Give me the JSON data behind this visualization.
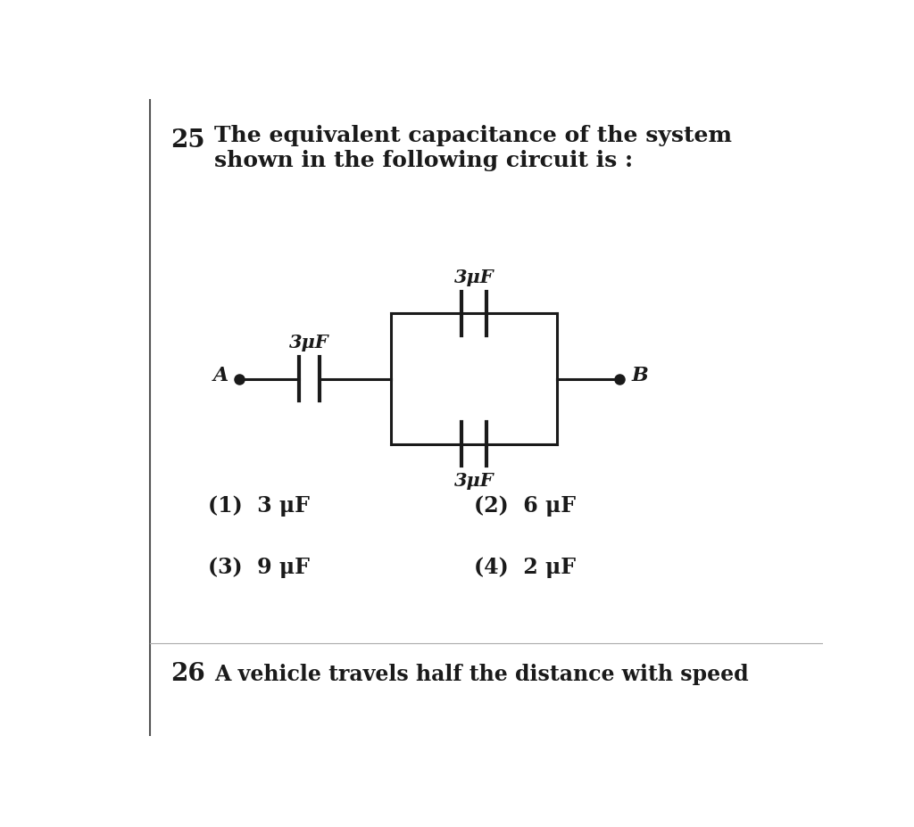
{
  "background_color": "#ffffff",
  "text_color": "#1a1a1a",
  "question_number": "25",
  "question_text": "The equivalent capacitance of the system\nshown in the following circuit is :",
  "options": [
    {
      "num": "(1)",
      "val": "3 μF"
    },
    {
      "num": "(2)",
      "val": "6 μF"
    },
    {
      "num": "(3)",
      "val": "9 μF"
    },
    {
      "num": "(4)",
      "val": "2 μF"
    }
  ],
  "footer_number": "26",
  "footer_text": "A vehicle travels half the distance with speed",
  "cap_label_series": "3μF",
  "cap_label_parallel_top": "3μF",
  "cap_label_parallel_bottom": "3μF",
  "node_A": "A",
  "node_B": "B",
  "left_border_color": "#555555",
  "circuit_color": "#1a1a1a",
  "font_size_question": 18,
  "font_size_options": 17,
  "font_size_qnum": 20,
  "font_size_footer": 17,
  "font_size_cap_label": 15,
  "font_size_node": 16
}
